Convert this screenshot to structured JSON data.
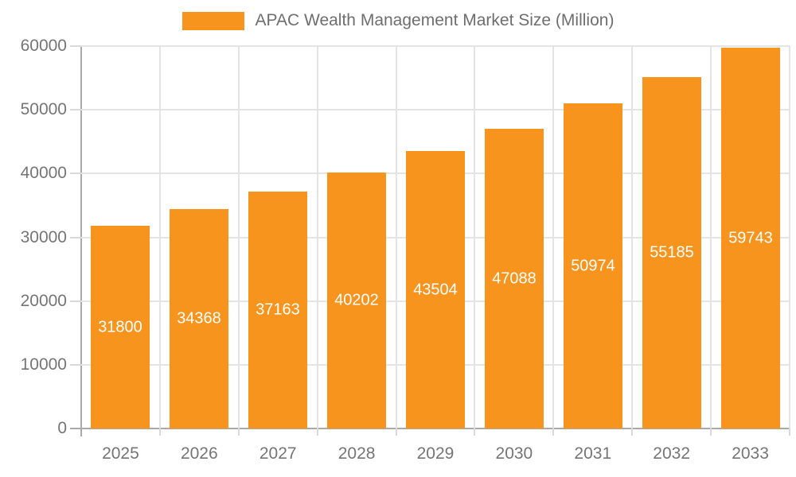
{
  "legend": {
    "label": "APAC Wealth Management Market Size (Million)"
  },
  "chart_data": {
    "type": "bar",
    "title": "APAC Wealth Management Market Size (Million)",
    "categories": [
      "2025",
      "2026",
      "2027",
      "2028",
      "2029",
      "2030",
      "2031",
      "2032",
      "2033"
    ],
    "values": [
      31800,
      34368,
      37163,
      40202,
      43504,
      47088,
      50974,
      55185,
      59743
    ],
    "xlabel": "",
    "ylabel": "",
    "ylim": [
      0,
      60000
    ],
    "yticks": [
      0,
      10000,
      20000,
      30000,
      40000,
      50000,
      60000
    ],
    "grid": true,
    "legend_position": "top-center",
    "bar_label_position": "inside-center"
  },
  "colors": {
    "bar": "#F7941E",
    "bar_label": "#FFFFFF",
    "grid": "#E4E4E4",
    "axis_line": "#A9A9A9",
    "tick": "#D9D9D9",
    "text": "#757575",
    "background": "#FFFFFF"
  }
}
